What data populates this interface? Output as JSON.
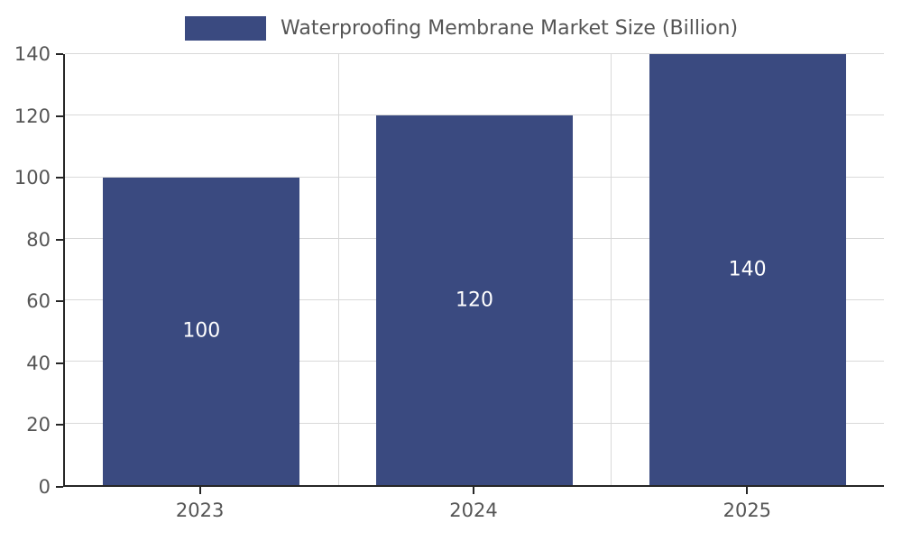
{
  "chart_data": {
    "type": "bar",
    "title": "Waterproofing Membrane Market Size (Billion)",
    "categories": [
      "2023",
      "2024",
      "2025"
    ],
    "values": [
      100,
      120,
      140
    ],
    "value_labels": [
      "100",
      "120",
      "140"
    ],
    "xlabel": "",
    "ylabel": "",
    "ylim": [
      0,
      140
    ],
    "yticks": [
      0,
      20,
      40,
      60,
      80,
      100,
      120,
      140
    ],
    "grid": true,
    "legend_position": "top",
    "colors": {
      "bar": "#3A4A80",
      "gridline": "#d9d9d9",
      "axis": "#262626",
      "tick_label": "#555555",
      "legend_text": "#555555",
      "bar_label": "#ffffff",
      "background": "#ffffff"
    }
  }
}
